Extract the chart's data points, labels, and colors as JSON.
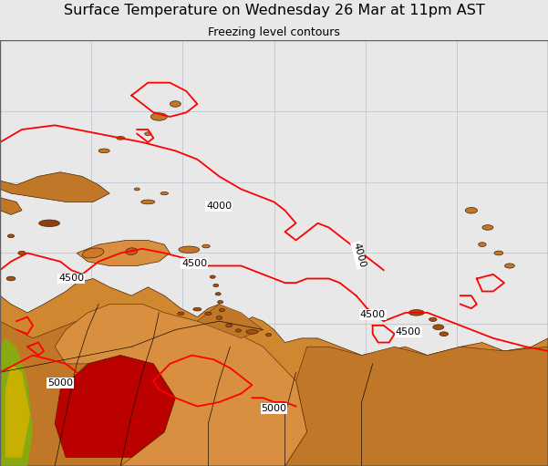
{
  "title": "Surface Temperature on Wednesday 26 Mar at 11pm AST",
  "subtitle": "Freezing level contours",
  "title_fontsize": 11.5,
  "subtitle_fontsize": 9,
  "map_bg": "#c8d0e0",
  "header_bg": "#e8e8e8",
  "grid_color": "#b8c0d0",
  "contour_color": "#ff0000",
  "land_brown": "#c07828",
  "land_orange": "#d08830",
  "land_bright": "#d89040",
  "land_dark": "#8b4010",
  "land_red": "#bb0000",
  "land_green": "#88aa10",
  "land_yellow": "#c8b000",
  "island_edge": "#502000"
}
